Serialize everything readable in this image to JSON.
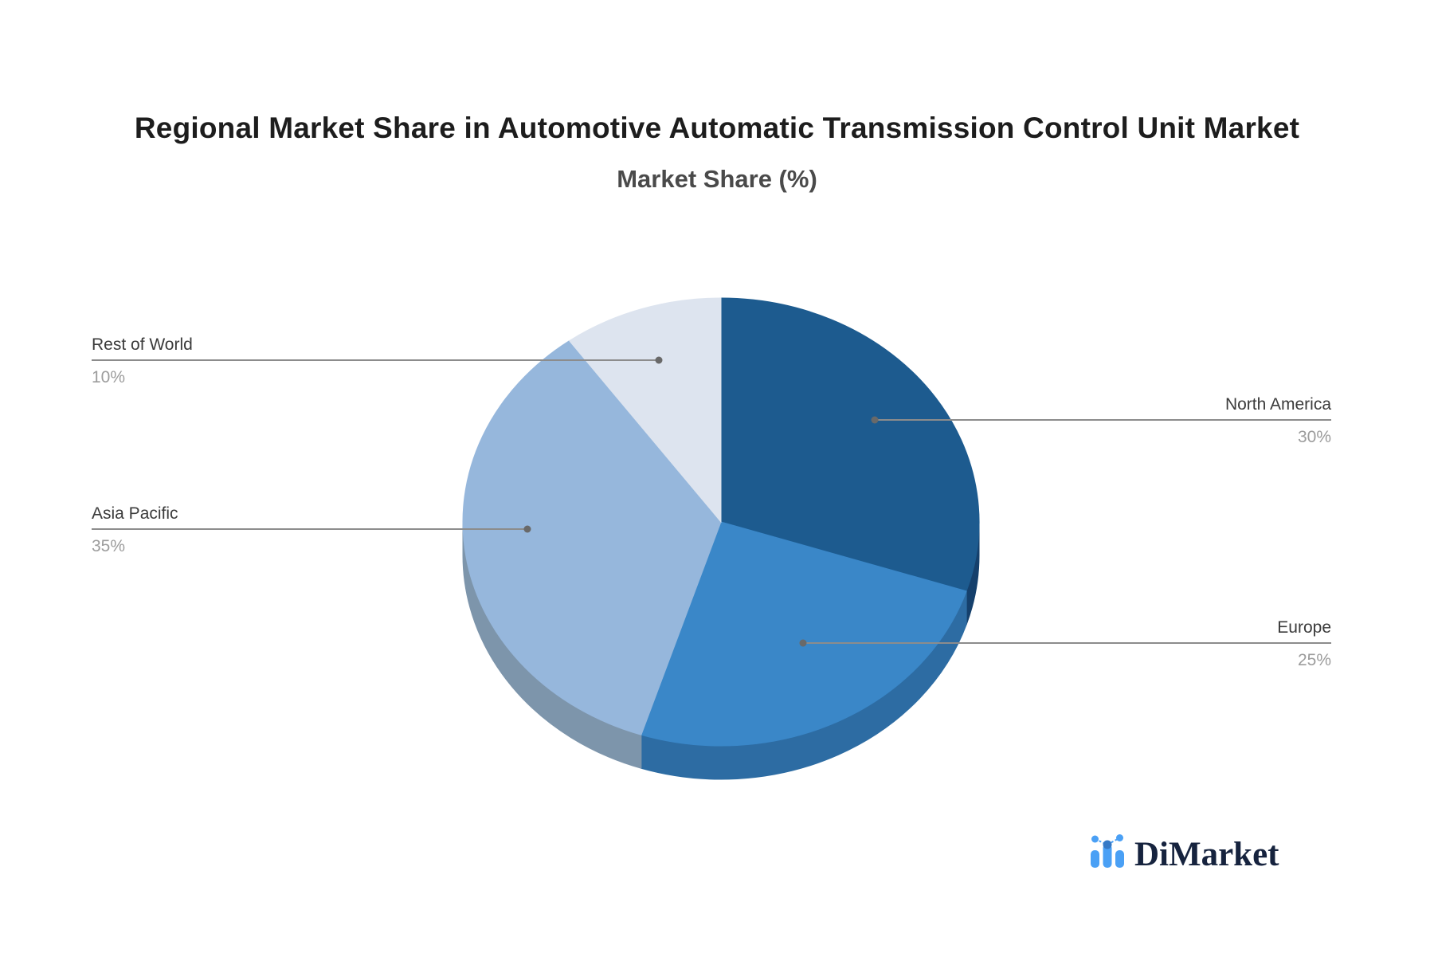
{
  "chart_data": {
    "type": "pie",
    "style": "3d",
    "title": "Regional Market Share in Automotive Automatic Transmission Control Unit Market",
    "subtitle": "Market Share (%)",
    "unit": "%",
    "start_angle_deg": 0,
    "direction": "clockwise",
    "legend_position": "callout-labels",
    "categories": [
      "North America",
      "Europe",
      "Asia Pacific",
      "Rest of World"
    ],
    "values": [
      30,
      25,
      35,
      10
    ],
    "slices": [
      {
        "label": "North America",
        "value": 30,
        "pct_label": "30%",
        "color": "#1d5b8f",
        "side_color": "#15406c"
      },
      {
        "label": "Europe",
        "value": 25,
        "pct_label": "25%",
        "color": "#3a87c8",
        "side_color": "#2d6ca3"
      },
      {
        "label": "Asia Pacific",
        "value": 35,
        "pct_label": "35%",
        "color": "#96b7dc",
        "side_color": "#7d95ab"
      },
      {
        "label": "Rest of World",
        "value": 10,
        "pct_label": "10%",
        "color": "#dde4ef",
        "side_color": "#c3cfdf"
      }
    ],
    "label_color": "#3b3b3b",
    "pct_color": "#9c9c9c",
    "leader_line_color": "#8c8c8c",
    "anchor_dot_color": "#696969",
    "background": "#ffffff"
  },
  "branding": {
    "logo_text": "DiMarket",
    "logo_icon": "bar-chart-icon",
    "logo_text_color": "#16233e",
    "logo_accent_color": "#4aa0f5"
  }
}
